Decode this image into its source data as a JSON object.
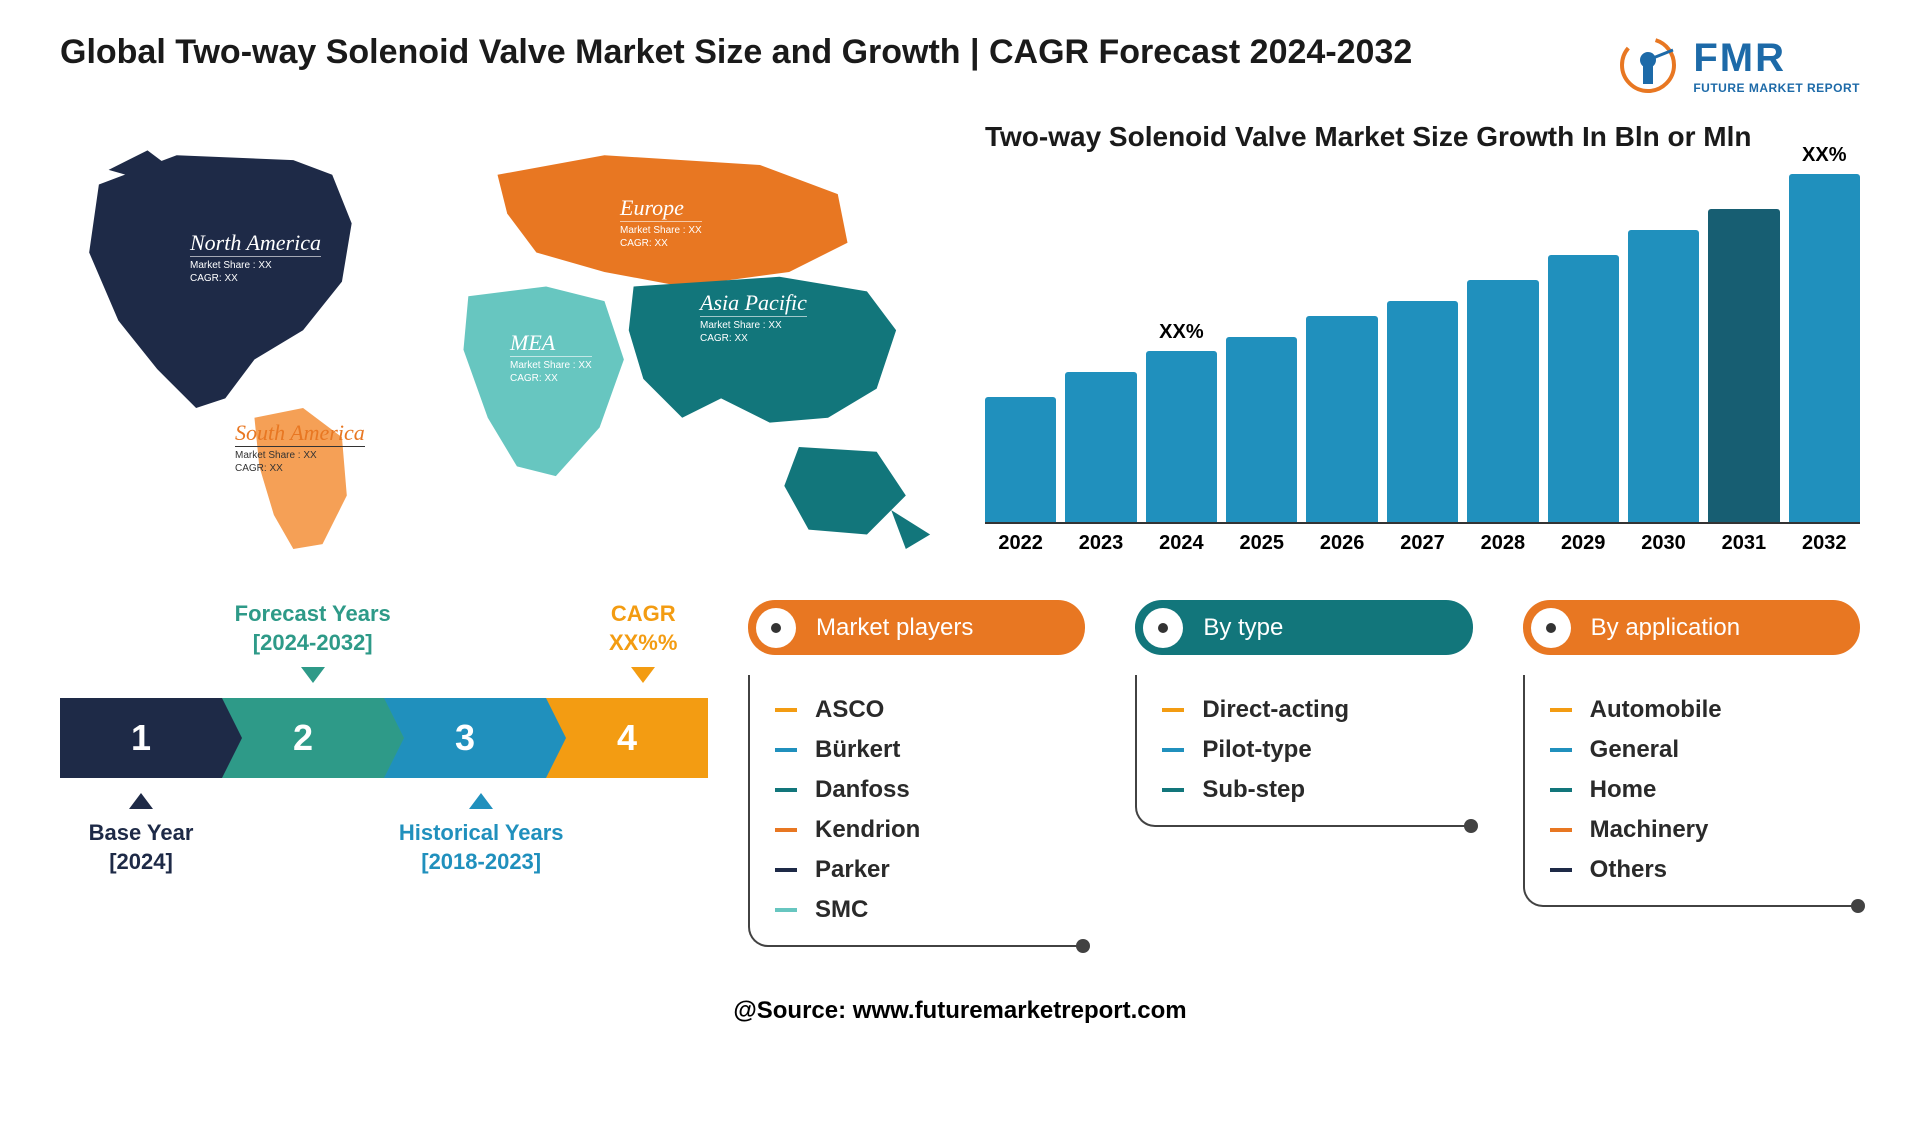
{
  "title": "Global Two-way Solenoid Valve Market Size and Growth | CAGR Forecast 2024-2032",
  "logo": {
    "main": "FMR",
    "sub": "FUTURE MARKET REPORT"
  },
  "colors": {
    "na": "#1e2a47",
    "sa": "#f5a056",
    "eu": "#e87722",
    "mea": "#67c6c0",
    "ap": "#12767b",
    "bar": "#2090bd",
    "bar_dark": "#175e72",
    "seg1": "#1e2a47",
    "seg2": "#2e9a88",
    "seg3": "#2090bd",
    "seg4": "#f39c12",
    "cat1": "#e87722",
    "cat2": "#12767b",
    "cat3": "#e87722",
    "marker1": "#f39c12",
    "marker2": "#2090bd",
    "marker3": "#12767b",
    "marker4": "#e87722",
    "marker5": "#1e2a47",
    "marker6": "#67c6c0"
  },
  "map": {
    "regions": [
      {
        "key": "na",
        "name": "North America",
        "share": "Market Share : XX",
        "cagr": "CAGR: XX"
      },
      {
        "key": "sa",
        "name": "South America",
        "share": "Market Share : XX",
        "cagr": "CAGR: XX"
      },
      {
        "key": "eu",
        "name": "Europe",
        "share": "Market Share : XX",
        "cagr": "CAGR: XX"
      },
      {
        "key": "mea",
        "name": "MEA",
        "share": "Market Share : XX",
        "cagr": "CAGR: XX"
      },
      {
        "key": "ap",
        "name": "Asia Pacific",
        "share": "Market Share : XX",
        "cagr": "CAGR: XX"
      }
    ]
  },
  "chart": {
    "title": "Two-way Solenoid Valve Market Size Growth In Bln or Mln",
    "years": [
      "2022",
      "2023",
      "2024",
      "2025",
      "2026",
      "2027",
      "2028",
      "2029",
      "2030",
      "2031",
      "2032"
    ],
    "values": [
      35,
      42,
      48,
      52,
      58,
      62,
      68,
      75,
      82,
      88,
      98
    ],
    "label2024": "XX%",
    "label2032": "XX%",
    "dark_index": 9
  },
  "timeline": {
    "forecast": {
      "label": "Forecast Years",
      "range": "[2024-2032]"
    },
    "cagr": {
      "label": "CAGR",
      "value": "XX%%"
    },
    "base": {
      "label": "Base Year",
      "range": "[2024]"
    },
    "historical": {
      "label": "Historical Years",
      "range": "[2018-2023]"
    },
    "segments": [
      "1",
      "2",
      "3",
      "4"
    ]
  },
  "categories": {
    "players": {
      "title": "Market players",
      "items": [
        "ASCO",
        "Bürkert",
        "Danfoss",
        "Kendrion",
        "Parker",
        "SMC"
      ]
    },
    "type": {
      "title": "By type",
      "items": [
        "Direct-acting",
        "Pilot-type",
        "Sub-step"
      ]
    },
    "application": {
      "title": "By application",
      "items": [
        "Automobile",
        "General",
        "Home",
        "Machinery",
        "Others"
      ]
    }
  },
  "source": "@Source: www.futuremarketreport.com"
}
